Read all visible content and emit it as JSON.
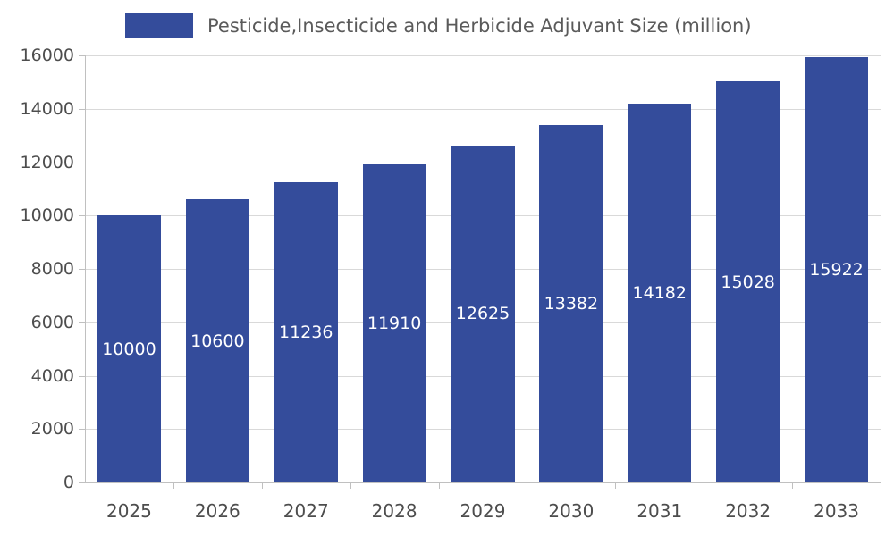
{
  "legend": {
    "label": "Pesticide,Insecticide and Herbicide Adjuvant Size (million)",
    "swatch_color": "#344c9b"
  },
  "chart_data": {
    "type": "bar",
    "title": "Pesticide,Insecticide and Herbicide Adjuvant Size (million)",
    "categories": [
      "2025",
      "2026",
      "2027",
      "2028",
      "2029",
      "2030",
      "2031",
      "2032",
      "2033"
    ],
    "values": [
      10000,
      10600,
      11236,
      11910,
      12625,
      13382,
      14182,
      15028,
      15922
    ],
    "xlabel": "",
    "ylabel": "",
    "ylim": [
      0,
      16000
    ],
    "ytick_step": 2000,
    "bar_color": "#344c9b",
    "value_label_color": "#ffffff",
    "grid": true,
    "legend_position": "top"
  }
}
